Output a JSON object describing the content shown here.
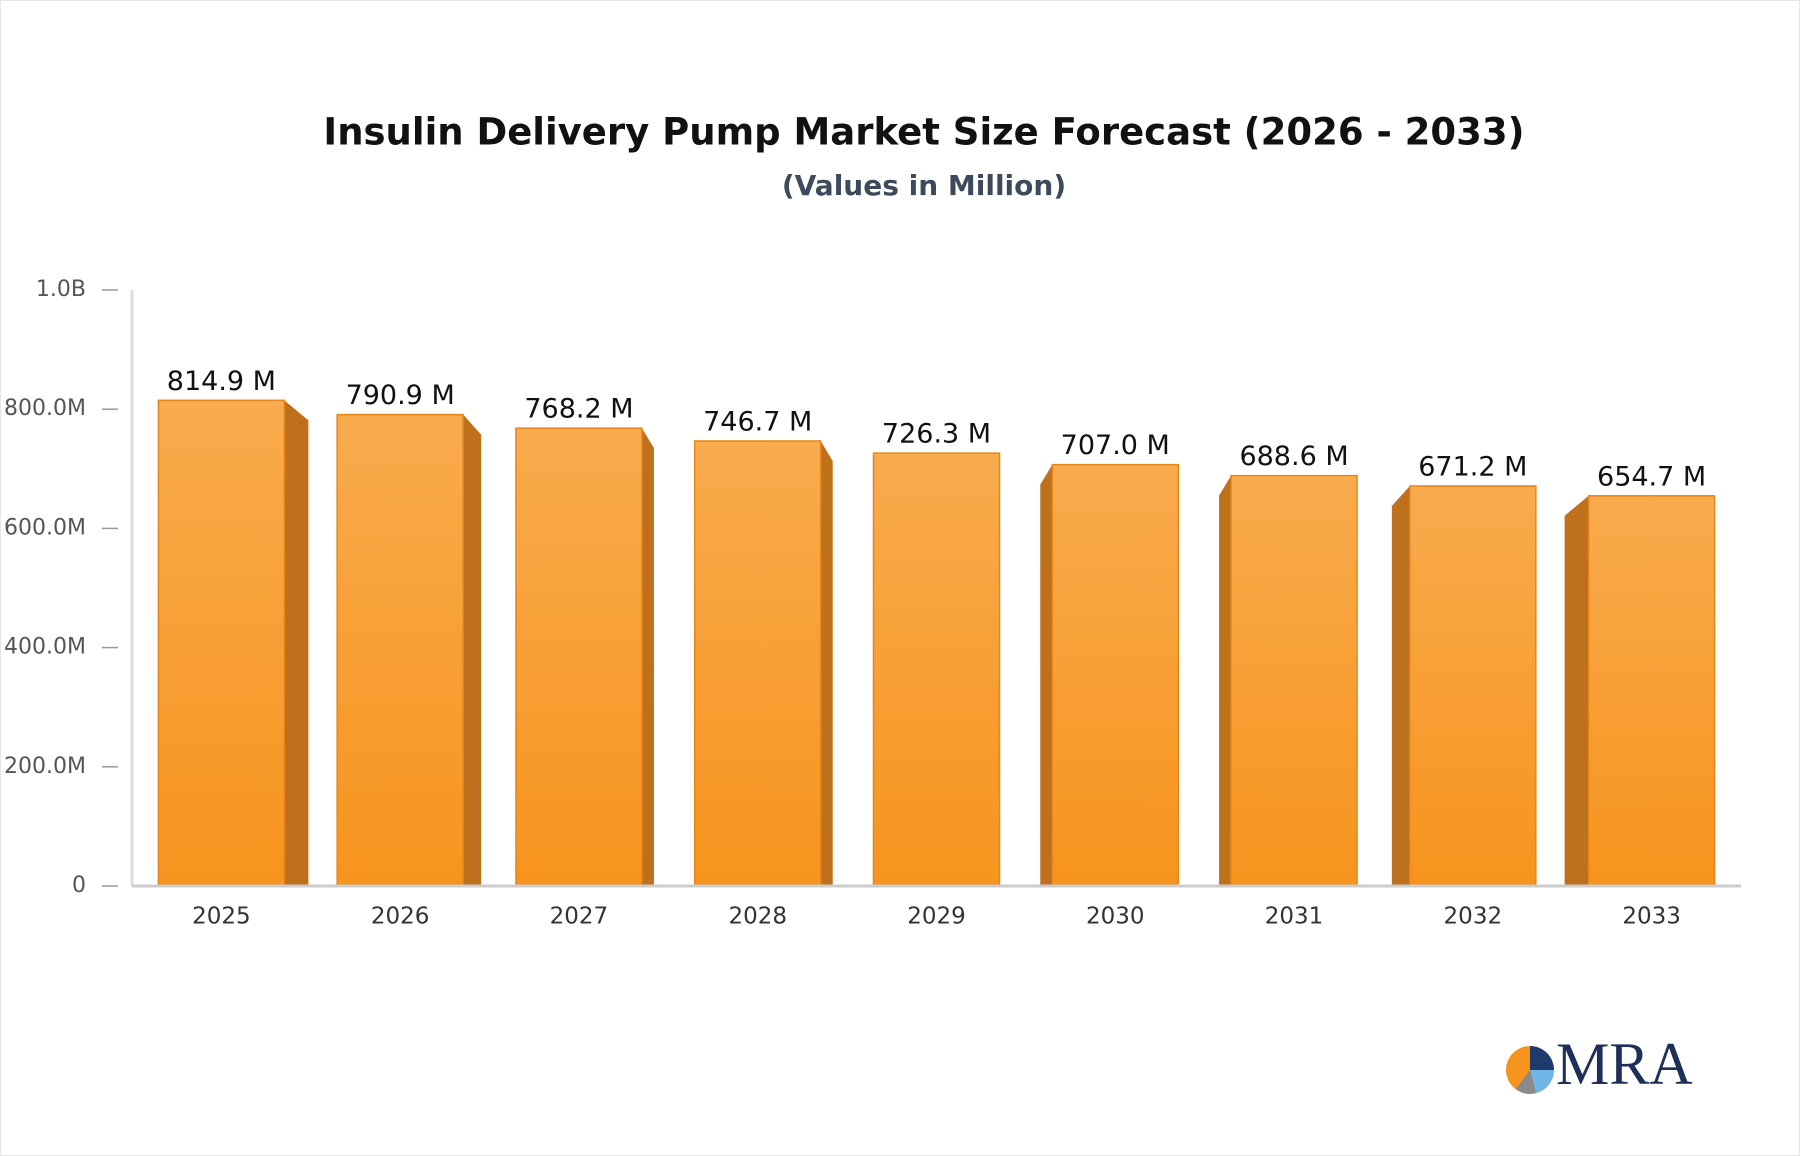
{
  "chart_data": {
    "type": "bar",
    "title": "Insulin Delivery Pump Market Size Forecast (2026 - 2033)",
    "subtitle": "(Values in Million)",
    "categories": [
      "2025",
      "2026",
      "2027",
      "2028",
      "2029",
      "2030",
      "2031",
      "2032",
      "2033"
    ],
    "values": [
      814.9,
      790.9,
      768.2,
      746.7,
      726.3,
      707.0,
      688.6,
      671.2,
      654.7
    ],
    "value_labels": [
      "814.9 M",
      "790.9 M",
      "768.2 M",
      "746.7 M",
      "726.3 M",
      "707.0 M",
      "688.6 M",
      "671.2 M",
      "654.7 M"
    ],
    "color": "#f7941d",
    "ylim": [
      0,
      1000
    ],
    "yticks": [
      0,
      {
        "value": 200,
        "label": "200.0M"
      },
      {
        "value": 400,
        "label": "400.0M"
      },
      {
        "value": 600,
        "label": "600.0M"
      },
      {
        "value": 800,
        "label": "800.0M"
      },
      {
        "value": 1000,
        "label": "1.0B"
      }
    ]
  },
  "logo": "MRA"
}
